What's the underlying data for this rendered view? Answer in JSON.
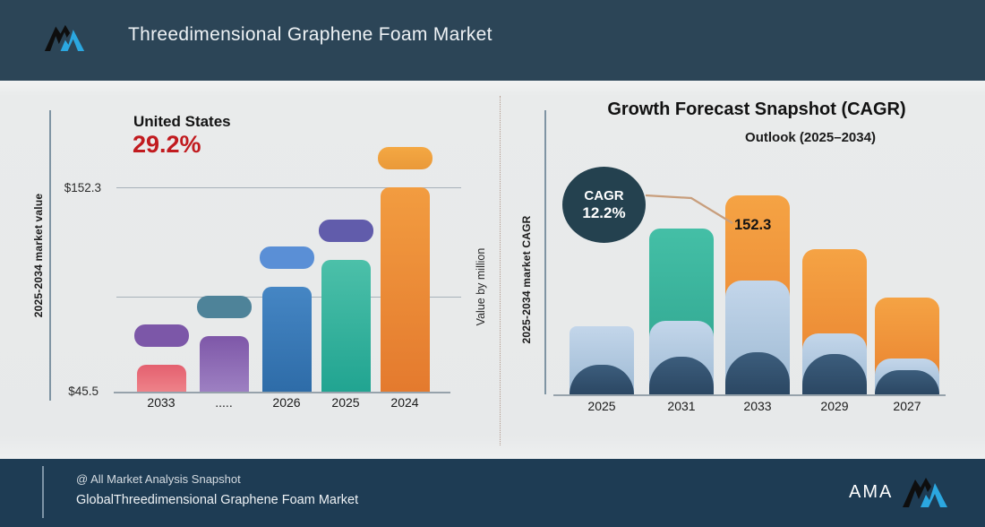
{
  "header": {
    "title": "Threedimensional Graphene Foam Market",
    "logo": "AMA mountain logo"
  },
  "footer": {
    "line1": "@ All Market Analysis Snapshot",
    "line2": "GlobalThreedimensional Graphene Foam Market",
    "brand": "AMA",
    "logo": "AMA mountain logo"
  },
  "colors": {
    "header_bg": "#2c4557",
    "footer_bg": "#1e3c54",
    "main_bg": "#e9ebeb",
    "accent_red": "#c11b1f",
    "badge_navy": "#24414f",
    "logo_blue": "#2ba7e0",
    "connector_tan": "#c89e7c"
  },
  "chart_data": [
    {
      "type": "bar",
      "panel": "left",
      "title": "United States",
      "highlight_value": "29.2%",
      "ylabel": "2025-2034 market value",
      "ylabel_right": "Value by million",
      "ytick_top": "$152.3",
      "ytick_bottom": "$45.5",
      "ylim": [
        45.5,
        152.3
      ],
      "grid": "two horizontal gridlines, labeled top tick only",
      "categories": [
        "2033",
        ".....",
        "2026",
        "2025",
        "2024"
      ],
      "values": [
        59.6,
        74.6,
        100.3,
        114.4,
        152.3
      ],
      "bar_colors": [
        "salmon",
        "purple",
        "blue",
        "teal",
        "orange"
      ],
      "bar_colors_hex": [
        "#e4606f",
        "#8a63b4",
        "#3578b4",
        "#3eb39e",
        "#e88a38"
      ],
      "cap_colors": [
        "cap-purple",
        "cap-steel",
        "cap-blue",
        "cap-indigo",
        "cap-orange"
      ],
      "cap_colors_hex": [
        "#7c57a8",
        "#4e8399",
        "#5a8fd6",
        "#615cab",
        "#f0a03e"
      ]
    },
    {
      "type": "stacked-bar",
      "panel": "right",
      "title": "Growth Forecast Snapshot (CAGR)",
      "subtitle": "Outlook (2025–2034)",
      "badge_label": "CAGR",
      "badge_value": "12.2%",
      "annotation_text": "152.3",
      "annotation_category": "2033",
      "ylabel": "2025-2034 market CAGR",
      "categories": [
        "2025",
        "2031",
        "2033",
        "2029",
        "2027"
      ],
      "axis_units": "unlabeled (relative heights)",
      "segment_colors_hex": {
        "top_orange": "#f0913a",
        "top_teal": "#3cb69c",
        "mid_lightblue": "#b5cce3",
        "base_navy": "#33506b"
      },
      "bars": [
        {
          "label": "2025",
          "total": 76,
          "mid": 76,
          "base": 33,
          "top_color": null
        },
        {
          "label": "2031",
          "total": 185,
          "mid": 82,
          "base": 42,
          "top_color": "teal"
        },
        {
          "label": "2033",
          "total": 222,
          "mid": 127,
          "base": 47,
          "top_color": "orange"
        },
        {
          "label": "2029",
          "total": 162,
          "mid": 68,
          "base": 45,
          "top_color": "orange"
        },
        {
          "label": "2027",
          "total": 108,
          "mid": 40,
          "base": 27,
          "top_color": "orange"
        }
      ]
    }
  ]
}
